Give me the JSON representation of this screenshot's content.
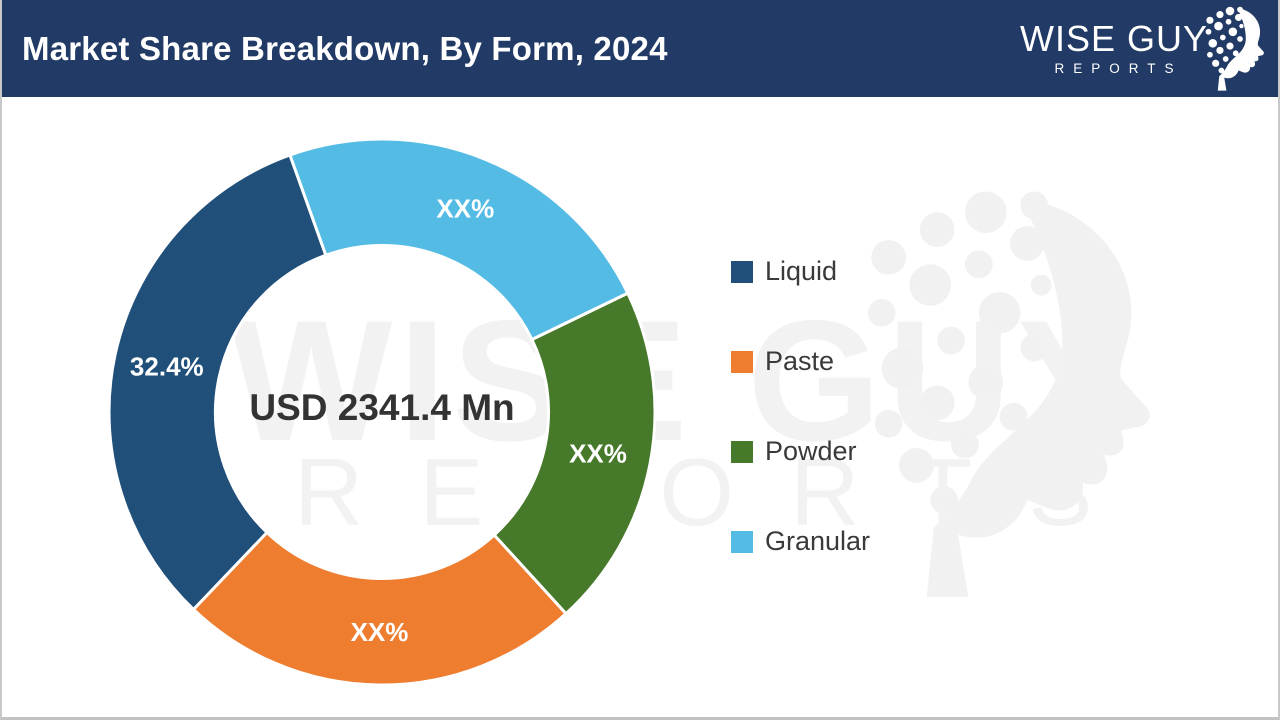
{
  "header": {
    "title": "Market Share Breakdown, By Form, 2024",
    "bg_color": "#213a66",
    "logo": {
      "line1": "WISE GUY",
      "line2": "REPORTS"
    }
  },
  "watermark": {
    "line1": "WISE GUY",
    "line2": "REPORTS"
  },
  "chart_data": {
    "type": "pie",
    "subtype": "donut",
    "title": "Market Share Breakdown, By Form, 2024",
    "center_label": "USD 2341.4 Mn",
    "start_angle_deg": 109.7,
    "direction": "counterclockwise",
    "inner_radius_ratio": 0.61,
    "legend_position": "right",
    "series": [
      {
        "name": "Liquid",
        "value": 32.4,
        "display_label": "32.4%",
        "color": "#204f7a"
      },
      {
        "name": "Paste",
        "value": 23.9,
        "display_label": "XX%",
        "color": "#ee7d30"
      },
      {
        "name": "Powder",
        "value": 20.4,
        "display_label": "XX%",
        "color": "#47792b"
      },
      {
        "name": "Granular",
        "value": 23.3,
        "display_label": "XX%",
        "color": "#53bbe4"
      }
    ]
  }
}
